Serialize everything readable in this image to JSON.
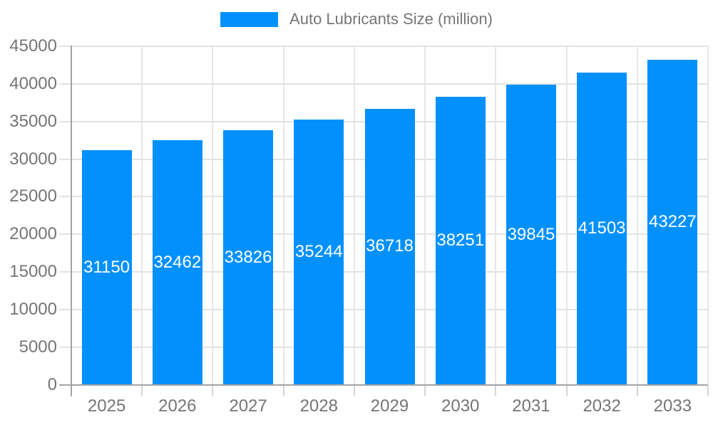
{
  "chart_data": {
    "type": "bar",
    "title": "Auto Lubricants Size (million)",
    "legend": {
      "position": "top",
      "entries": [
        {
          "label": "Auto Lubricants Size (million)",
          "color": "#0291FC"
        }
      ]
    },
    "categories": [
      "2025",
      "2026",
      "2027",
      "2028",
      "2029",
      "2030",
      "2031",
      "2032",
      "2033"
    ],
    "series": [
      {
        "name": "Auto Lubricants Size (million)",
        "values": [
          31150,
          32462,
          33826,
          35244,
          36718,
          38251,
          39845,
          41503,
          43227
        ]
      }
    ],
    "value_labels": [
      "31150",
      "32462",
      "33826",
      "35244",
      "36718",
      "38251",
      "39845",
      "41503",
      "43227"
    ],
    "xlabel": "",
    "ylabel": "",
    "ylim": [
      0,
      45000
    ],
    "y_tick_step": 5000,
    "y_tick_labels": [
      "0",
      "5000",
      "10000",
      "15000",
      "20000",
      "25000",
      "30000",
      "35000",
      "40000",
      "45000"
    ],
    "grid": "on",
    "colors": {
      "bar": "#0291FC",
      "bar_value_text": "#ffffff",
      "axis_text": "#757575",
      "grid_line": "#e2e2e2",
      "axis_line": "#a3a3a3",
      "background": "#ffffff"
    }
  }
}
